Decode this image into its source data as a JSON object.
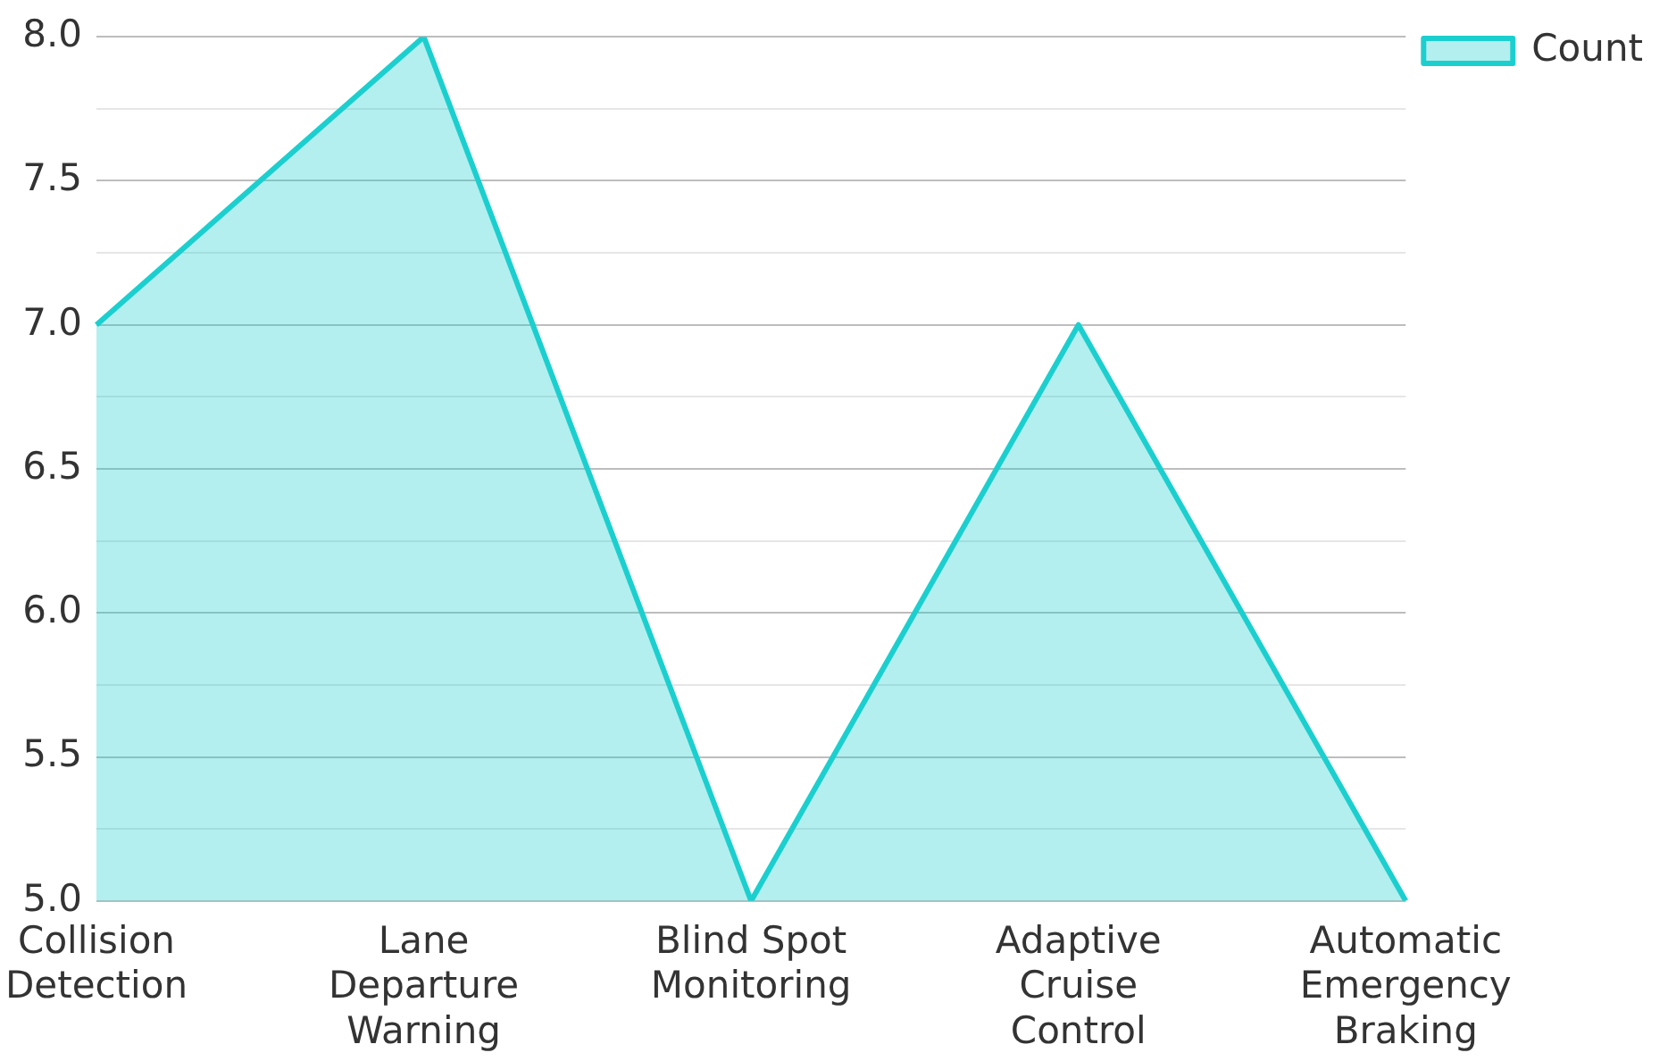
{
  "chart_data": {
    "type": "area",
    "categories": [
      "Collision Detection",
      "Lane Departure Warning",
      "Blind Spot Monitoring",
      "Adaptive Cruise Control",
      "Automatic Emergency Braking"
    ],
    "series": [
      {
        "name": "Count",
        "color": "#1ccfcf",
        "values": [
          7,
          8,
          5,
          7,
          5
        ]
      }
    ],
    "ylim": [
      5,
      8
    ],
    "yticks": [
      {
        "value": 5,
        "label": "5.0"
      },
      {
        "value": 5.25,
        "label": null
      },
      {
        "value": 5.5,
        "label": "5.5"
      },
      {
        "value": 5.75,
        "label": null
      },
      {
        "value": 6,
        "label": "6.0"
      },
      {
        "value": 6.25,
        "label": null
      },
      {
        "value": 6.5,
        "label": "6.5"
      },
      {
        "value": 6.75,
        "label": null
      },
      {
        "value": 7,
        "label": "7.0"
      },
      {
        "value": 7.25,
        "label": null
      },
      {
        "value": 7.5,
        "label": "7.5"
      },
      {
        "value": 7.75,
        "label": null
      },
      {
        "value": 8,
        "label": "8.0"
      }
    ],
    "grid": "y",
    "legend": "top right"
  }
}
